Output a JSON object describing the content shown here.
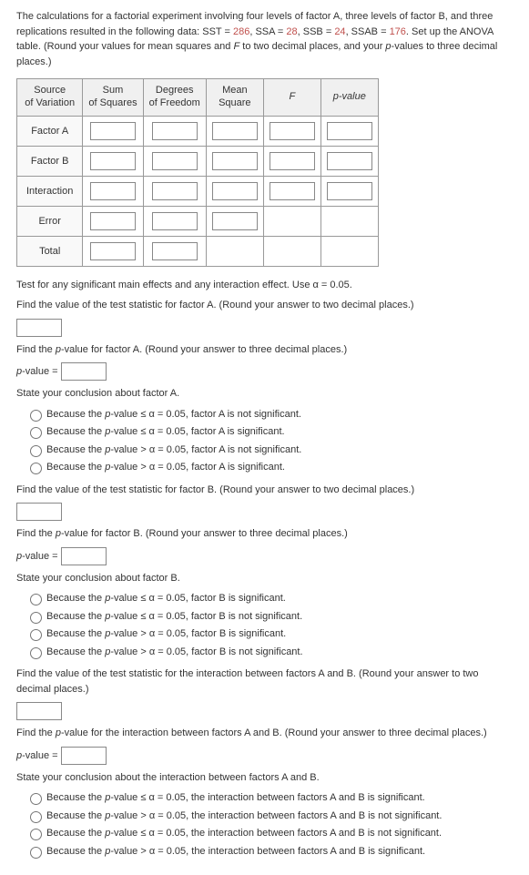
{
  "intro": {
    "t1": "The calculations for a factorial experiment involving four levels of factor A, three levels of factor B, and three replications resulted in the following data: SST = ",
    "sst": "286",
    "t2": ", SSA = ",
    "ssa": "28",
    "t3": ", SSB = ",
    "ssb": "24",
    "t4": ", SSAB = ",
    "ssab": "176",
    "t5": ". Set up the ANOVA table. (Round your values for mean squares and ",
    "italF": "F",
    "t6": " to two decimal places, and your ",
    "italP": "p",
    "t7": "-values to three decimal places.)"
  },
  "headers": {
    "source1": "Source",
    "source2": "of Variation",
    "sum1": "Sum",
    "sum2": "of Squares",
    "deg1": "Degrees",
    "deg2": "of Freedom",
    "mean1": "Mean",
    "mean2": "Square",
    "F": "F",
    "pval": "p-value"
  },
  "rows": {
    "a": "Factor A",
    "b": "Factor B",
    "int": "Interaction",
    "err": "Error",
    "tot": "Total"
  },
  "prompts": {
    "test_intro": "Test for any significant main effects and any interaction effect. Use α = 0.05.",
    "fA_stat": "Find the value of the test statistic for factor A. (Round your answer to two decimal places.)",
    "fA_p": "p",
    "fA_p_prompt": "-value for factor A. (Round your answer to three decimal places.)",
    "fA_p_prefix": "Find the ",
    "pval_eq": "-value = ",
    "stateA": "State your conclusion about factor A.",
    "fB_stat": "Find the value of the test statistic for factor B. (Round your answer to two decimal places.)",
    "fB_p_prompt": "-value for factor B. (Round your answer to three decimal places.)",
    "stateB": "State your conclusion about factor B.",
    "fAB_stat": "Find the value of the test statistic for the interaction between factors A and B. (Round your answer to two decimal places.)",
    "fAB_p_prompt": "-value for the interaction between factors A and B. (Round your answer to three decimal places.)",
    "stateAB": "State your conclusion about the interaction between factors A and B."
  },
  "optA": {
    "o1a": "Because the ",
    "o1p": "p",
    "o1b": "-value ≤ α = 0.05, factor A is not significant.",
    "o2b": "-value ≤ α = 0.05, factor A is significant.",
    "o3b": "-value > α = 0.05, factor A is not significant.",
    "o4b": "-value > α = 0.05, factor A is significant."
  },
  "optB": {
    "o1b": "-value ≤ α = 0.05, factor B is significant.",
    "o2b": "-value ≤ α = 0.05, factor B is not significant.",
    "o3b": "-value > α = 0.05, factor B is significant.",
    "o4b": "-value > α = 0.05, factor B is not significant."
  },
  "optAB": {
    "o1b": "-value ≤ α = 0.05, the interaction between factors A and B is significant.",
    "o2b": "-value > α = 0.05, the interaction between factors A and B is not significant.",
    "o3b": "-value ≤ α = 0.05, the interaction between factors A and B is not significant.",
    "o4b": "-value > α = 0.05, the interaction between factors A and B is significant."
  }
}
